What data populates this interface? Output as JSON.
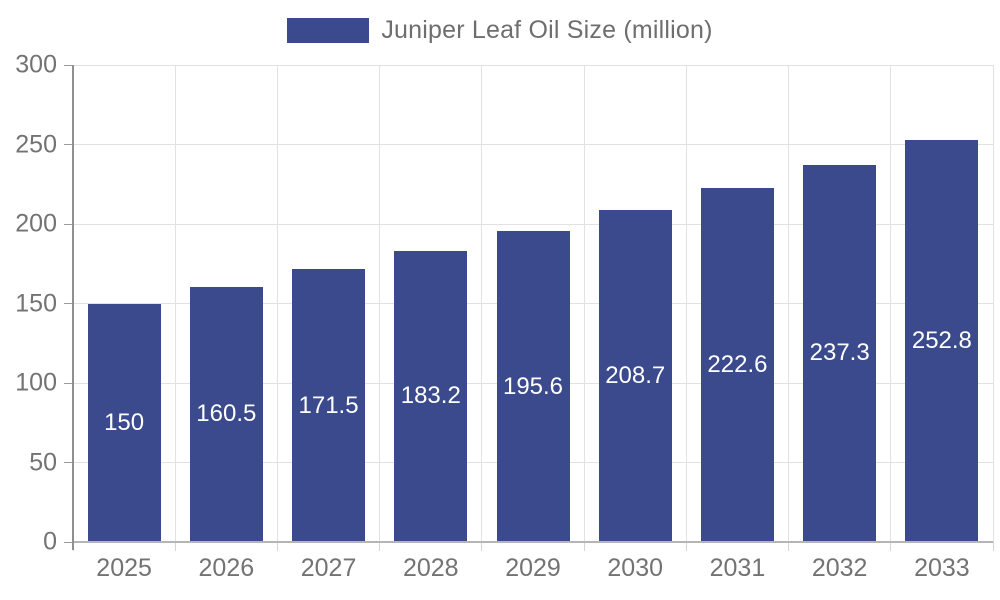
{
  "legend": {
    "label": "Juniper Leaf Oil Size (million)"
  },
  "colors": {
    "bar": "#3A4A8C",
    "axis_text": "#737373",
    "legend_text": "#6e6e6e",
    "grid": "#e2e2e2",
    "y_axis_line": "#8f8f8f",
    "x_axis_line": "#b5b5b5",
    "bar_label_text": "#ffffff"
  },
  "chart_data": {
    "type": "bar",
    "title": "Juniper Leaf Oil Size (million)",
    "categories": [
      "2025",
      "2026",
      "2027",
      "2028",
      "2029",
      "2030",
      "2031",
      "2032",
      "2033"
    ],
    "values": [
      150,
      160.5,
      171.5,
      183.2,
      195.6,
      208.7,
      222.6,
      237.3,
      252.8
    ],
    "value_labels": [
      "150",
      "160.5",
      "171.5",
      "183.2",
      "195.6",
      "208.7",
      "222.6",
      "237.3",
      "252.8"
    ],
    "series_name": "Juniper Leaf Oil Size (million)",
    "xlabel": "",
    "ylabel": "",
    "ylim": [
      0,
      300
    ],
    "yticks": [
      0,
      50,
      100,
      150,
      200,
      250,
      300
    ],
    "grid": true,
    "legend_position": "top-center",
    "bar_labels_inside": true
  }
}
